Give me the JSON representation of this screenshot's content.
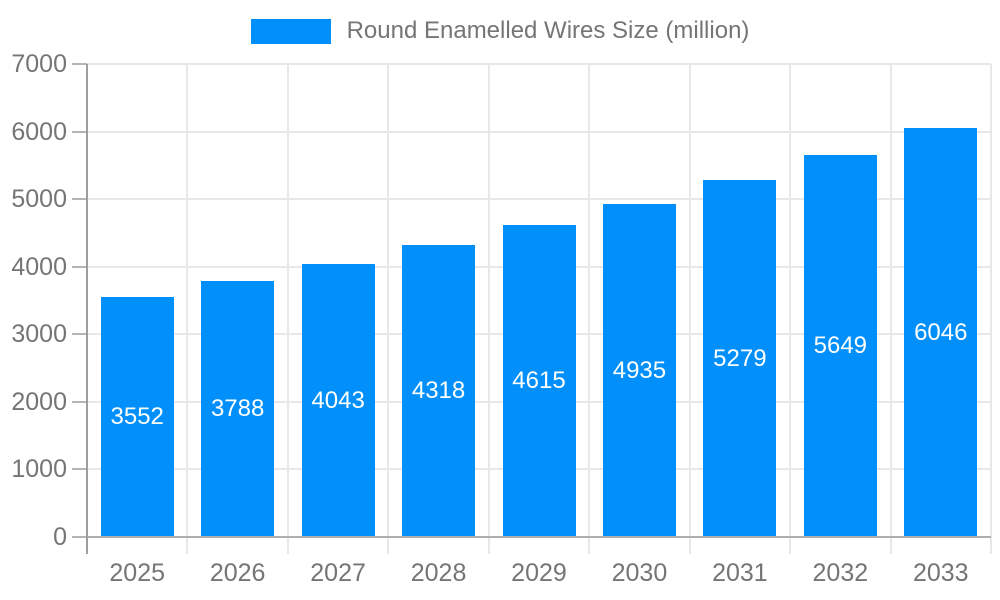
{
  "legend": {
    "label": "Round Enamelled Wires Size (million)",
    "swatch_color": "#008FFB"
  },
  "chart_data": {
    "type": "bar",
    "title": "Round Enamelled Wires Size (million)",
    "categories": [
      "2025",
      "2026",
      "2027",
      "2028",
      "2029",
      "2030",
      "2031",
      "2032",
      "2033"
    ],
    "values": [
      3552,
      3788,
      4043,
      4318,
      4615,
      4935,
      5279,
      5649,
      6046
    ],
    "xlabel": "",
    "ylabel": "",
    "ylim": [
      0,
      7000
    ],
    "yticks": [
      0,
      1000,
      2000,
      3000,
      4000,
      5000,
      6000,
      7000
    ],
    "grid": true,
    "legend_position": "top",
    "value_label_position": "middle",
    "bar_color": "#008FFB",
    "value_label_color": "#ffffff",
    "axis_label_color": "#757575",
    "gridline_color": "#e8e8e8",
    "axis_line_color": "#9e9e9e"
  }
}
